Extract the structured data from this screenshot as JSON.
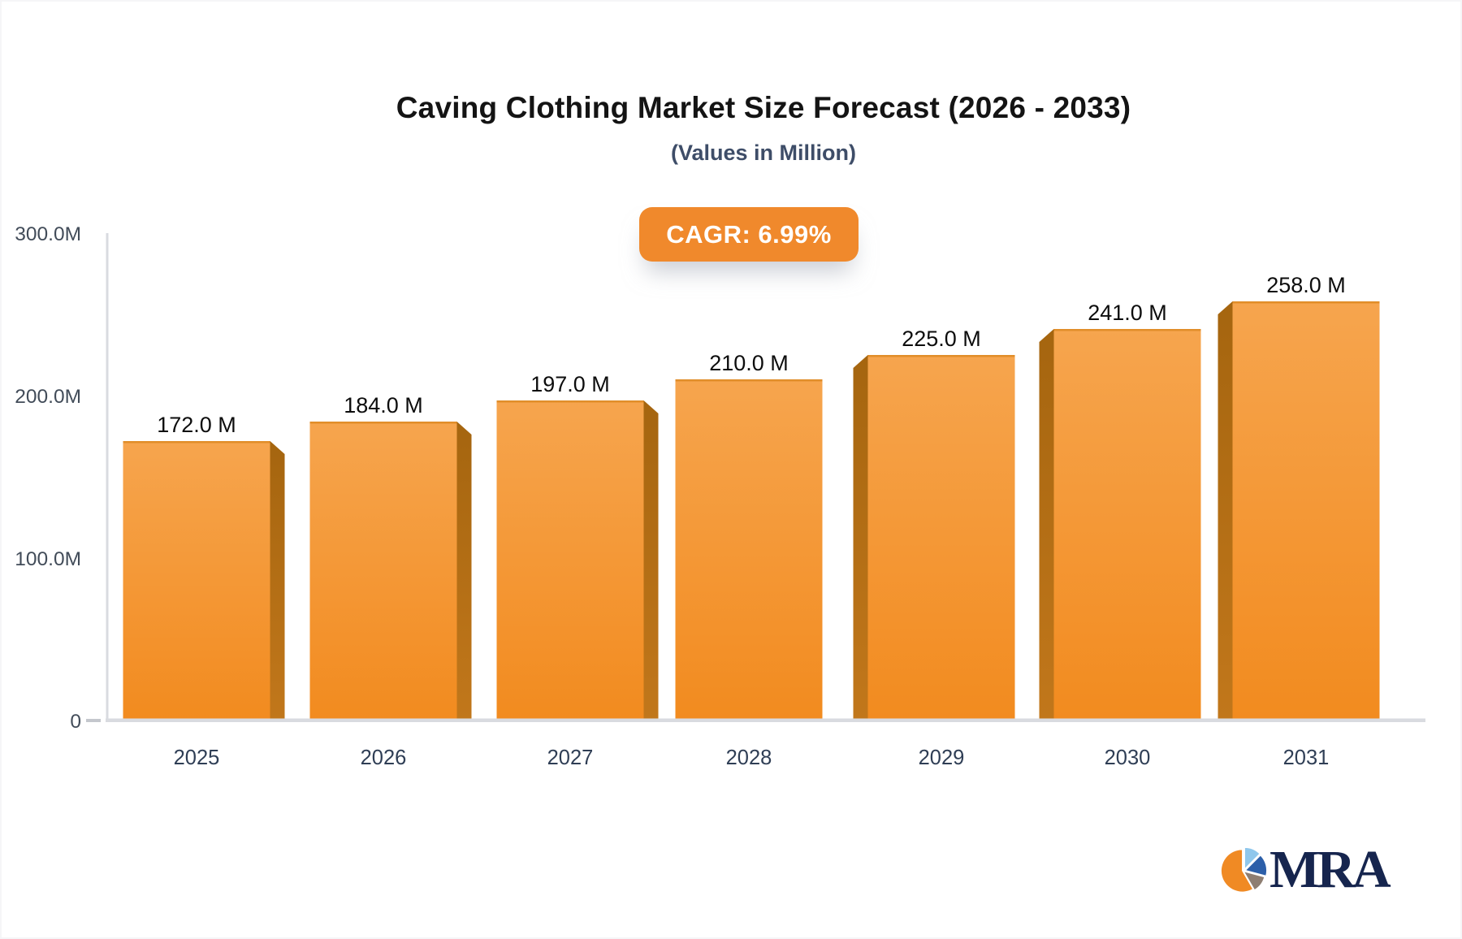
{
  "header": {
    "title": "Caving Clothing Market Size Forecast (2026 - 2033)",
    "subtitle": "(Values in Million)",
    "cagr_badge": "CAGR: 6.99%",
    "badge_color": "#F0892C"
  },
  "chart_data": {
    "type": "bar",
    "title": "Caving Clothing Market Size Forecast (2026 - 2033)",
    "subtitle": "(Values in Million)",
    "unit": "Million",
    "cagr_label": "CAGR: 6.99%",
    "cagr_percent": 6.99,
    "categories": [
      "2025",
      "2026",
      "2027",
      "2028",
      "2029",
      "2030",
      "2031"
    ],
    "values": [
      172,
      184,
      197,
      210,
      225,
      241,
      258
    ],
    "value_labels": [
      "172.0 M",
      "184.0 M",
      "197.0 M",
      "210.0 M",
      "225.0 M",
      "241.0 M",
      "258.0 M"
    ],
    "ylim": [
      0,
      300
    ],
    "yticks": [
      {
        "value": 0,
        "label": "0",
        "dash": true
      },
      {
        "value": 100,
        "label": "100.0M"
      },
      {
        "value": 200,
        "label": "200.0M"
      },
      {
        "value": 300,
        "label": "300.0M"
      }
    ],
    "grid": false,
    "legend": "none",
    "bar_gradient_top": "#F6A54E",
    "bar_gradient_bottom": "#F28B1F",
    "bar_top_edge_color": "#DD8A25",
    "bar_side_top": "#A5650F",
    "bar_side_bottom": "#C1771B",
    "axis_color": "#D9DBE0",
    "value_label_color": "#0D0D0D",
    "category_label_color": "#2F3E55",
    "ytick_label_color": "#424C59"
  },
  "logo": {
    "text": "MRA",
    "pie_colors": {
      "main": "#F08A24",
      "light_blue": "#8FC7EC",
      "dark_blue": "#2C5FA9",
      "gray": "#8E7E72"
    },
    "text_color": "#16254E"
  }
}
